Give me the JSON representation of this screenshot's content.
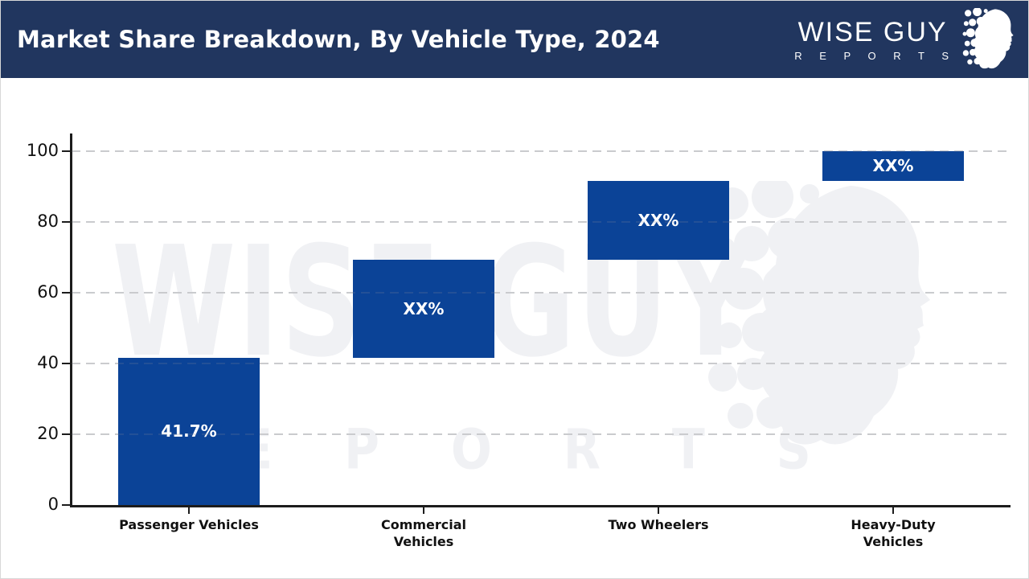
{
  "header": {
    "title": "Market Share Breakdown, By Vehicle Type, 2024",
    "logo": {
      "line1": "WISE GUY",
      "line2": "R E P O R T S"
    }
  },
  "watermark": {
    "line1": "WISE GUY",
    "line2": "R E P O R T S"
  },
  "colors": {
    "header_bg": "#21365f",
    "bar": "#0b4397",
    "bar_label": "#ffffff",
    "grid": "#dcdcdc",
    "axis": "#1c1c1c",
    "watermark": "#f0f1f4",
    "title_text": "#ffffff"
  },
  "chart_data": {
    "type": "bar",
    "subtype": "waterfall",
    "title": "Market Share Breakdown, By Vehicle Type, 2024",
    "categories": [
      "Passenger Vehicles",
      "Commercial Vehicles",
      "Two Wheelers",
      "Heavy-Duty Vehicles"
    ],
    "category_lines": [
      [
        "Passenger Vehicles"
      ],
      [
        "Commercial",
        "Vehicles"
      ],
      [
        "Two Wheelers"
      ],
      [
        "Heavy-Duty",
        "Vehicles"
      ]
    ],
    "series": [
      {
        "name": "Market share (%)",
        "segments": [
          {
            "category": "Passenger Vehicles",
            "start": 0,
            "end": 41.7,
            "label": "41.7%"
          },
          {
            "category": "Commercial Vehicles",
            "start": 41.7,
            "end": 69.3,
            "label": "XX%"
          },
          {
            "category": "Two Wheelers",
            "start": 69.3,
            "end": 91.7,
            "label": "XX%"
          },
          {
            "category": "Heavy-Duty Vehicles",
            "start": 91.7,
            "end": 100,
            "label": "XX%"
          }
        ]
      }
    ],
    "ylim": [
      0,
      100
    ],
    "yticks": [
      0,
      20,
      40,
      60,
      80,
      100
    ],
    "ytick_labels": [
      "0",
      "20",
      "40",
      "60",
      "80",
      "100"
    ],
    "grid": "horizontal-dashed",
    "legend": "none"
  }
}
